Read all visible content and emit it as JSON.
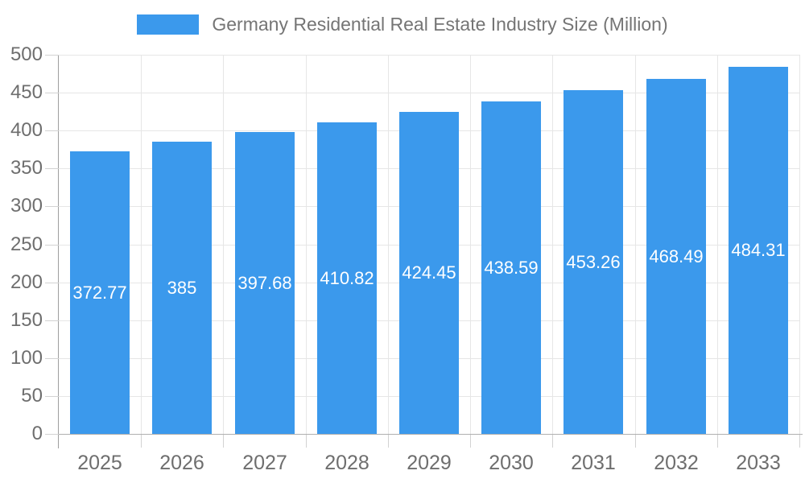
{
  "chart_data": {
    "type": "bar",
    "title": "Germany Residential Real Estate Industry Size (Million)",
    "categories": [
      "2025",
      "2026",
      "2027",
      "2028",
      "2029",
      "2030",
      "2031",
      "2032",
      "2033"
    ],
    "values": [
      372.77,
      385,
      397.68,
      410.82,
      424.45,
      438.59,
      453.26,
      468.49,
      484.31
    ],
    "value_labels": [
      "372.77",
      "385",
      "397.68",
      "410.82",
      "424.45",
      "438.59",
      "453.26",
      "468.49",
      "484.31"
    ],
    "xlabel": "",
    "ylabel": "",
    "ylim": [
      0,
      500
    ],
    "yticks": [
      0,
      50,
      100,
      150,
      200,
      250,
      300,
      350,
      400,
      450,
      500
    ],
    "grid": true,
    "legend_position": "top",
    "colors": {
      "bar": "#3B99EC",
      "bar_label": "#FFFFFF",
      "axis_text": "#6E6E6E",
      "legend_text": "#757575",
      "gridline": "#E6E6E6",
      "axis_line": "#9E9E9E",
      "baseline": "#B0B0B0",
      "tick": "#D2D2D2"
    }
  }
}
